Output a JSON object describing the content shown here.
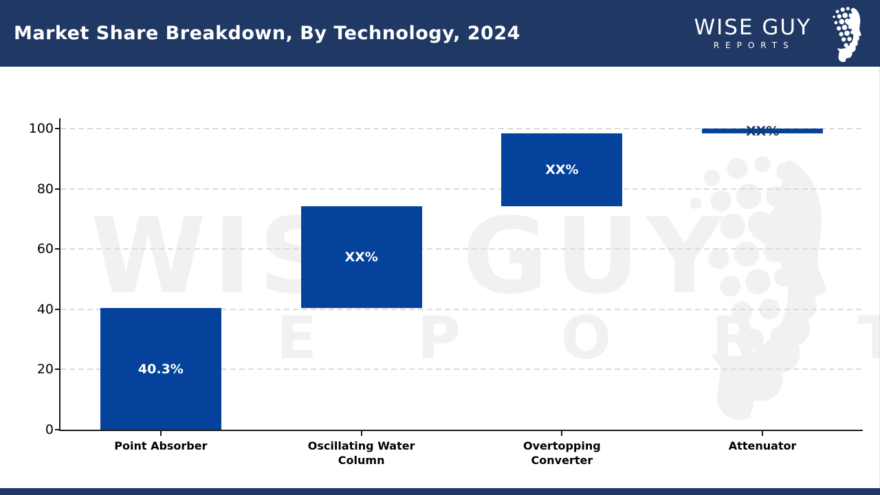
{
  "header": {
    "title": "Market Share Breakdown, By Technology, 2024",
    "logo": {
      "line1": "WISE GUY",
      "line2": "REPORTS",
      "face_icon": "dotted-face-profile-icon"
    }
  },
  "watermark": {
    "line1": "WISE GUY",
    "line2": "R E P O R T S",
    "face_icon": "dotted-face-profile-watermark"
  },
  "colors": {
    "header_bg": "#1F3864",
    "footer_bg": "#1F3864",
    "bar": "#05429B",
    "bar_label_light": "#FFFFFF",
    "bar_label_dark": "#1B3767",
    "grid": "#DBDBDB",
    "axis": "#1A1A1A",
    "watermark": "#F1F1F1",
    "title_text": "#FFFFFF"
  },
  "chart_data": {
    "type": "bar",
    "subtype": "waterfall-market-share",
    "title": "Market Share Breakdown, By Technology, 2024",
    "categories": [
      "Point Absorber",
      "Oscillating Water Column",
      "Overtopping Converter",
      "Attenuator"
    ],
    "segments": [
      {
        "category": "Point Absorber",
        "label_text": "Point Absorber",
        "start": 0,
        "end": 40.3,
        "value_label": "40.3%",
        "label_style": "light"
      },
      {
        "category": "Oscillating Water Column",
        "label_text": "Oscillating Water\nColumn",
        "start": 40.3,
        "end": 74.2,
        "value_label": "XX%",
        "label_style": "light"
      },
      {
        "category": "Overtopping Converter",
        "label_text": "Overtopping\nConverter",
        "start": 74.2,
        "end": 98.4,
        "value_label": "XX%",
        "label_style": "light"
      },
      {
        "category": "Attenuator",
        "label_text": "Attenuator",
        "start": 98.4,
        "end": 100,
        "value_label": "XX%",
        "label_style": "dark"
      }
    ],
    "ylim": [
      0,
      100
    ],
    "yticks": [
      0,
      20,
      40,
      60,
      80,
      100
    ],
    "xlabel": "",
    "ylabel": "",
    "grid": "horizontal-dashed",
    "legend": "none"
  }
}
